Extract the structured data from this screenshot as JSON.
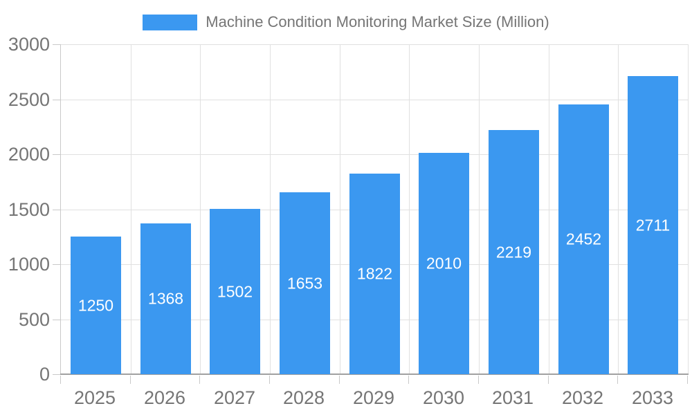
{
  "chart_data": {
    "type": "bar",
    "title": "Machine Condition Monitoring Market Size (Million)",
    "categories": [
      "2025",
      "2026",
      "2027",
      "2028",
      "2029",
      "2030",
      "2031",
      "2032",
      "2033"
    ],
    "values": [
      1250,
      1368,
      1502,
      1653,
      1822,
      2010,
      2219,
      2452,
      2711
    ],
    "xlabel": "",
    "ylabel": "",
    "ylim": [
      0,
      3000
    ],
    "yticks": [
      0,
      500,
      1000,
      1500,
      2000,
      2500,
      3000
    ],
    "grid": true,
    "legend_position": "top",
    "colors": {
      "bar": "#3B98F0",
      "bar_value_text": "#ffffff",
      "axis_text": "#757575",
      "gridline": "#e0e0e0",
      "baseline": "#a0a0a0",
      "tick": "#c9c9c9"
    }
  }
}
